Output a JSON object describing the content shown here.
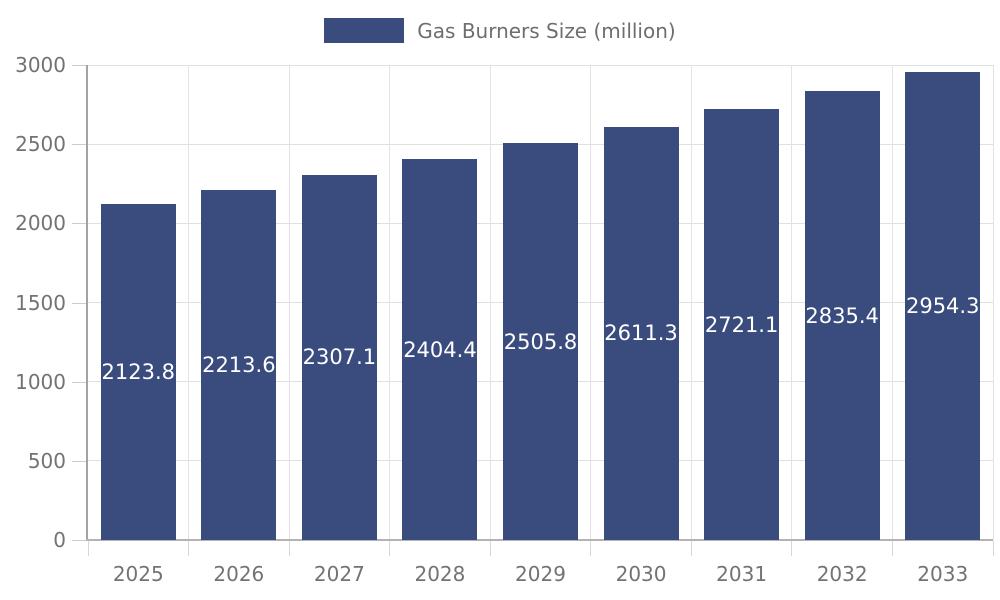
{
  "legend": {
    "swatch_color": "#3A4B7D"
  },
  "chart_data": {
    "type": "bar",
    "title": "",
    "xlabel": "",
    "ylabel": "",
    "series_name": "Gas Burners Size (million)",
    "categories": [
      "2025",
      "2026",
      "2027",
      "2028",
      "2029",
      "2030",
      "2031",
      "2032",
      "2033"
    ],
    "values": [
      2123.8,
      2213.6,
      2307.1,
      2404.4,
      2505.8,
      2611.3,
      2721.1,
      2835.4,
      2954.3
    ],
    "value_labels": [
      "2123.8",
      "2213.6",
      "2307.1",
      "2404.4",
      "2505.8",
      "2611.3",
      "2721.1",
      "2835.4",
      "2954.3"
    ],
    "ylim": [
      0,
      3000
    ],
    "yticks": [
      0,
      500,
      1000,
      1500,
      2000,
      2500,
      3000
    ],
    "grid": true,
    "legend_position": "top-center",
    "bar_color": "#3A4B7D",
    "value_label_color": "#ffffff",
    "tick_label_color": "#737373",
    "gridline_color": "#e0e0e0",
    "axis_line_color": "#a3a3a3"
  }
}
